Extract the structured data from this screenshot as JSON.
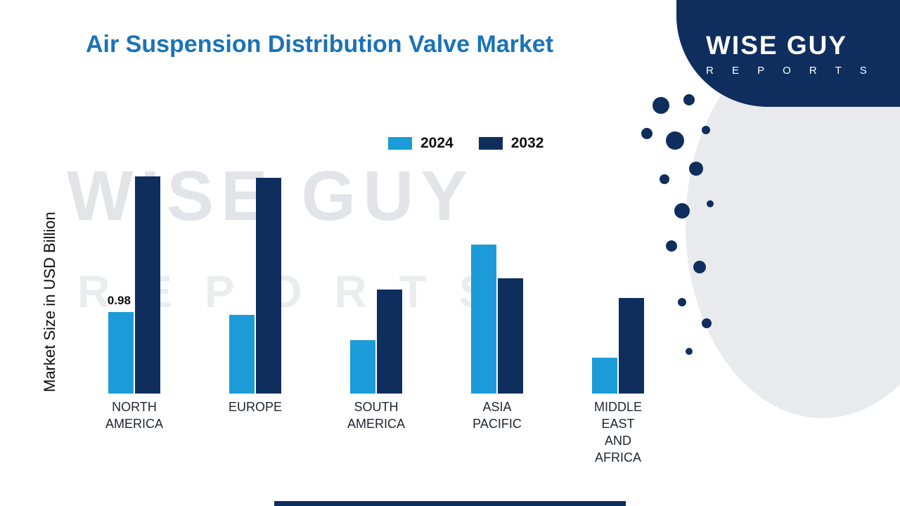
{
  "page": {
    "title": "Air Suspension Distribution Valve Market"
  },
  "logo": {
    "line1": "WISE GUY",
    "line2": "R E P O R T S"
  },
  "watermark": {
    "line1": "WISE GUY",
    "line2": "REPORTS"
  },
  "colors": {
    "series_2024": "#1b9cd8",
    "series_2032": "#0f2e5d",
    "title_blue": "#1a73b7"
  },
  "chart_data": {
    "type": "bar",
    "title": "Air Suspension Distribution Valve Market",
    "xlabel": "",
    "ylabel": "Market Size in USD Billion",
    "categories": [
      "NORTH AMERICA",
      "EUROPE",
      "SOUTH AMERICA",
      "ASIA PACIFIC",
      "MIDDLE EAST AND AFRICA"
    ],
    "series": [
      {
        "name": "2024",
        "color": "#1b9cd8",
        "values": [
          0.98,
          0.95,
          0.64,
          1.8,
          0.43
        ]
      },
      {
        "name": "2032",
        "color": "#0f2e5d",
        "values": [
          2.62,
          2.6,
          1.25,
          1.39,
          1.15
        ]
      }
    ],
    "value_labels": [
      {
        "series": "2024",
        "category_index": 0,
        "text": "0.98"
      }
    ],
    "ylim": [
      0,
      3
    ],
    "grid": false,
    "legend_position": "top-center"
  }
}
